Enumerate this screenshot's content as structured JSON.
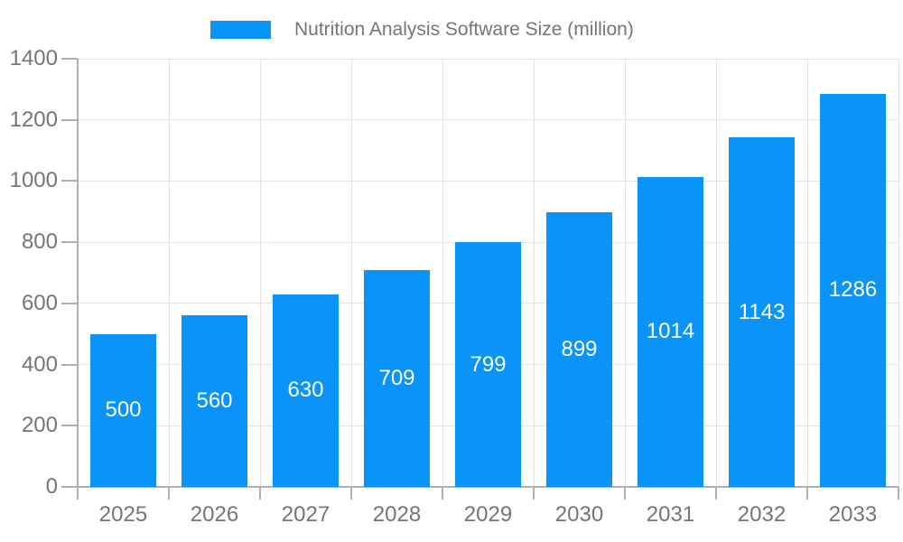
{
  "chart_data": {
    "type": "bar",
    "title": "Nutrition Analysis Software Size (million)",
    "legend": {
      "position": "top",
      "items": [
        "Nutrition Analysis Software Size (million)"
      ]
    },
    "categories": [
      "2025",
      "2026",
      "2027",
      "2028",
      "2029",
      "2030",
      "2031",
      "2032",
      "2033"
    ],
    "series": [
      {
        "name": "Nutrition Analysis Software Size (million)",
        "values": [
          500,
          560,
          630,
          709,
          799,
          899,
          1014,
          1143,
          1286
        ]
      }
    ],
    "xlabel": "",
    "ylabel": "",
    "ylim": [
      0,
      1400
    ],
    "yticks": [
      0,
      200,
      400,
      600,
      800,
      1000,
      1200,
      1400
    ],
    "grid": true,
    "value_labels_shown": true
  },
  "colors": {
    "bar": "#0a93f9",
    "value_label": "#ffffff",
    "axis_text": "#757575",
    "legend_text": "#757575",
    "gridline": "#e3e3e3",
    "axis_line": "#b0b0b0",
    "background": "#ffffff"
  }
}
